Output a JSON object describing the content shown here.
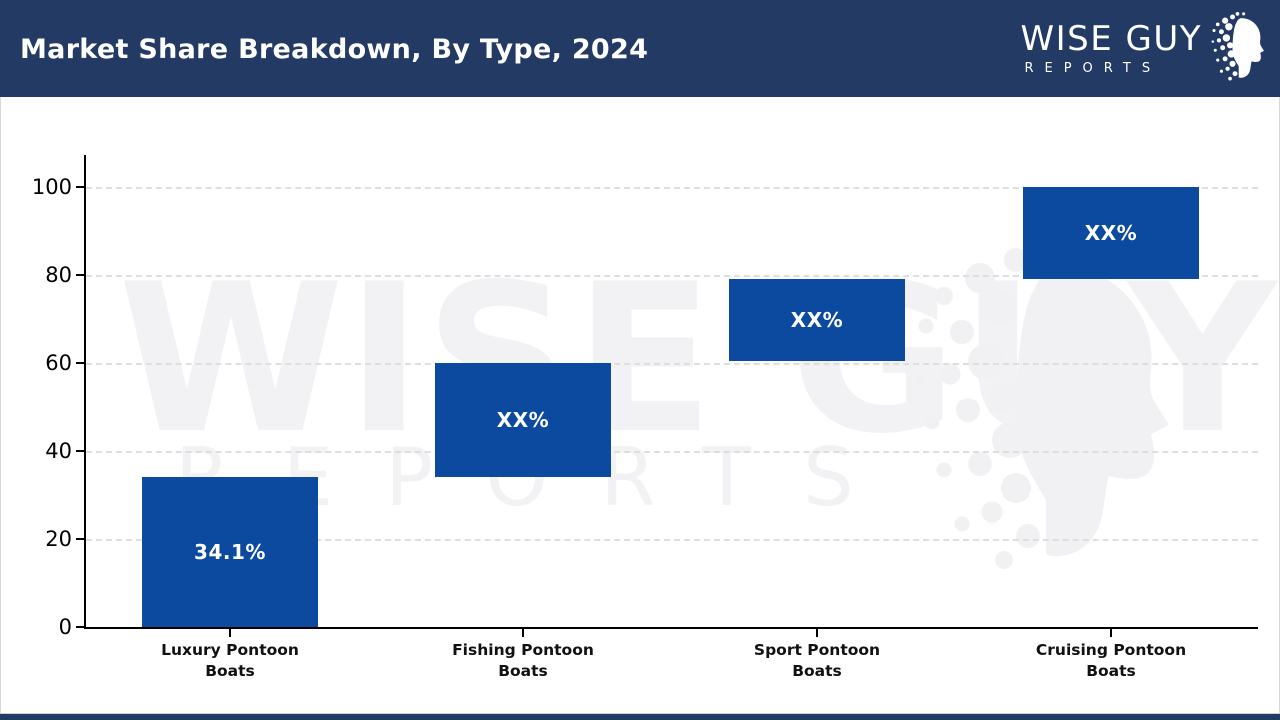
{
  "header": {
    "title": "Market Share Breakdown, By Type, 2024",
    "logo": {
      "wordmark": "WISE GUY",
      "subtext": "REPORTS"
    }
  },
  "watermark": {
    "line1": "WISE GUY",
    "line2": "REPORTS"
  },
  "chart_data": {
    "type": "bar",
    "variant": "waterfall",
    "title": "Market Share Breakdown, By Type, 2024",
    "categories": [
      "Luxury Pontoon Boats",
      "Fishing Pontoon Boats",
      "Sport Pontoon Boats",
      "Cruising Pontoon Boats"
    ],
    "series": [
      {
        "name": "Market share (%)",
        "segments": [
          {
            "category": "Luxury Pontoon Boats",
            "start": 0,
            "end": 34.1,
            "label": "34.1%"
          },
          {
            "category": "Fishing Pontoon Boats",
            "start": 34.1,
            "end": 60,
            "label": "XX%"
          },
          {
            "category": "Sport Pontoon Boats",
            "start": 60.5,
            "end": 79,
            "label": "XX%"
          },
          {
            "category": "Cruising Pontoon Boats",
            "start": 79,
            "end": 100,
            "label": "XX%"
          }
        ]
      }
    ],
    "xlabel": "",
    "ylabel": "",
    "ylim": [
      0,
      100
    ],
    "yticks": [
      0,
      20,
      40,
      60,
      80,
      100
    ],
    "grid": "horizontal-dashed",
    "legend": "none",
    "bar_color": "#0c4aa0",
    "bar_label_color": "#ffffff"
  },
  "colors": {
    "header_bg": "#223a64",
    "footer_bg": "#223a64",
    "bar": "#0c4aa0",
    "watermark": "#f2f2f5",
    "grid": "#dedede",
    "axis": "#000000"
  }
}
